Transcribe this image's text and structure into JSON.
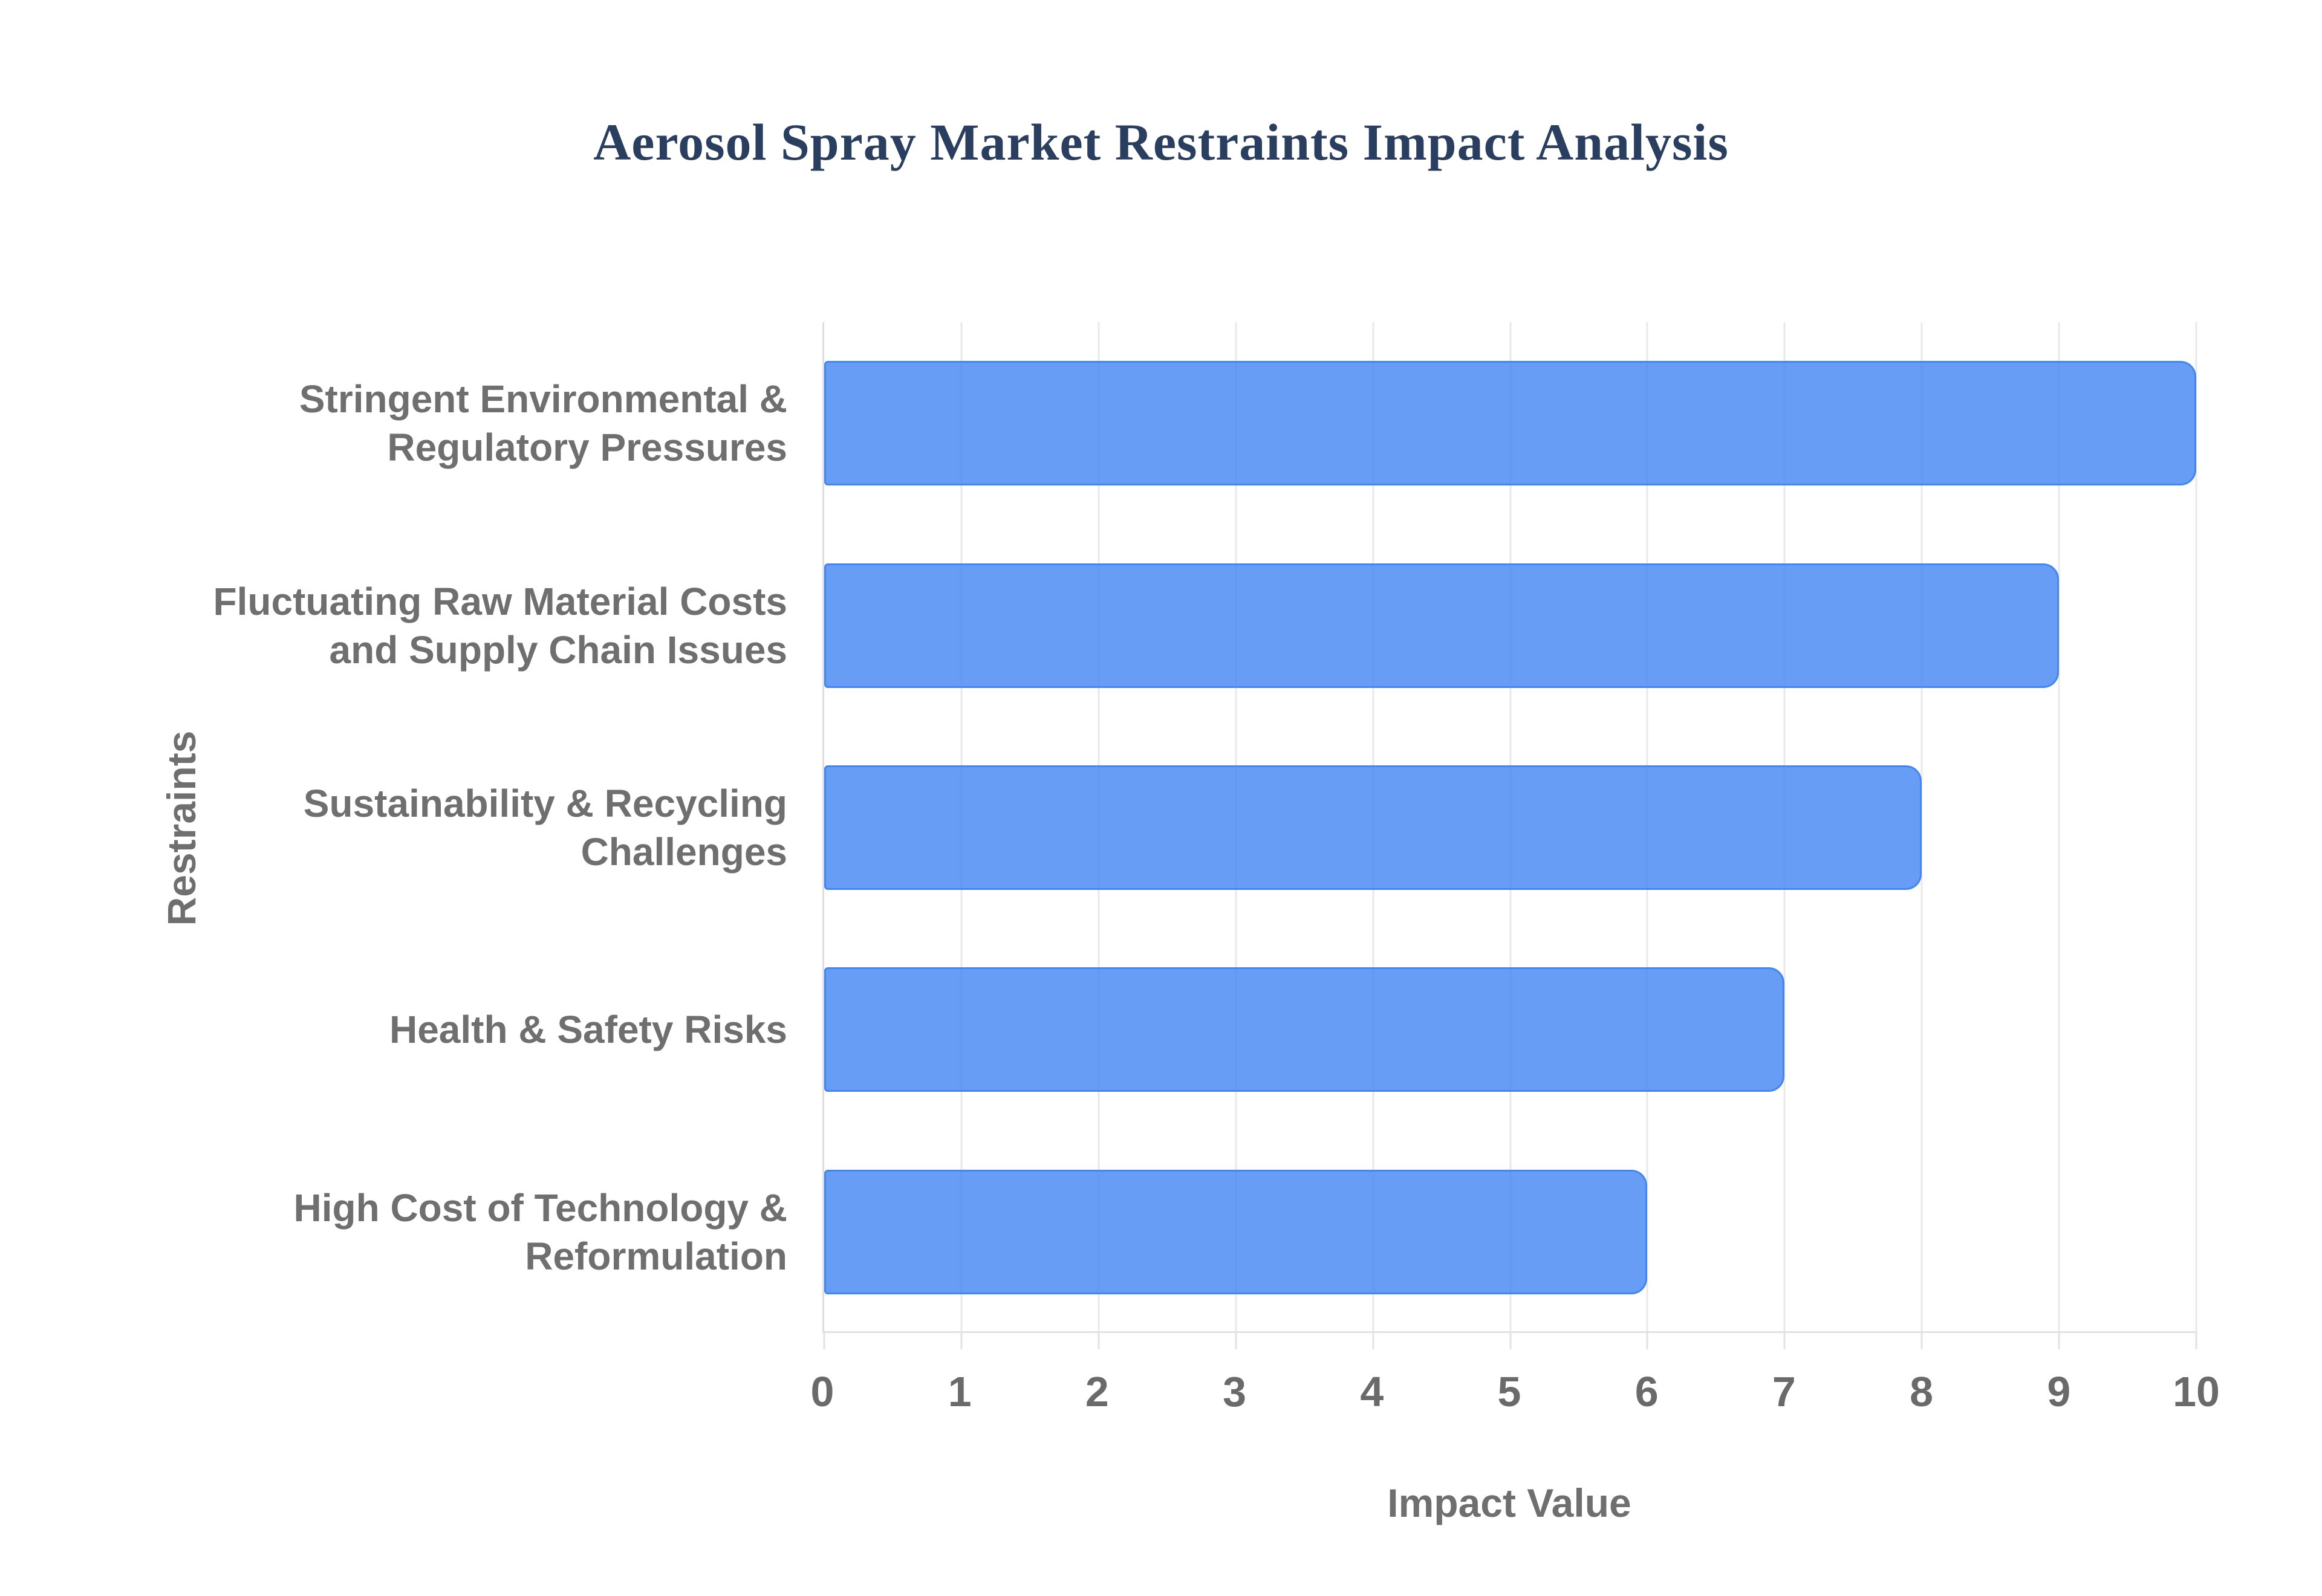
{
  "page": {
    "background": "#ffffff"
  },
  "chart_data": {
    "type": "bar",
    "orientation": "horizontal",
    "title": "Aerosol Spray Market Restraints Impact Analysis",
    "xlabel": "Impact Value",
    "ylabel": "Restraints",
    "categories": [
      "Stringent Environmental & Regulatory Pressures",
      "Fluctuating Raw Material Costs and Supply Chain Issues",
      "Sustainability & Recycling Challenges",
      "Health & Safety Risks",
      "High Cost of Technology & Reformulation"
    ],
    "category_lines": [
      [
        "Stringent Environmental &",
        "Regulatory Pressures"
      ],
      [
        "Fluctuating Raw Material Costs",
        "and Supply Chain Issues"
      ],
      [
        "Sustainability & Recycling",
        "Challenges"
      ],
      [
        "Health & Safety Risks"
      ],
      [
        "High Cost of Technology &",
        "Reformulation"
      ]
    ],
    "values": [
      10,
      9,
      8,
      7,
      6
    ],
    "xlim": [
      0,
      10
    ],
    "xticks": [
      0,
      1,
      2,
      3,
      4,
      5,
      6,
      7,
      8,
      9,
      10
    ],
    "grid": true,
    "legend": false,
    "colors": {
      "bar_fill": "rgba(66, 133, 244, 0.8)",
      "bar_border": "#4285f4",
      "title_color": "#2a3f5f",
      "label_color": "#6f6f6f",
      "tick_color": "#6a6a6a",
      "grid_color": "#e9e9e9",
      "axis_line_color": "#e2e2e2"
    }
  }
}
